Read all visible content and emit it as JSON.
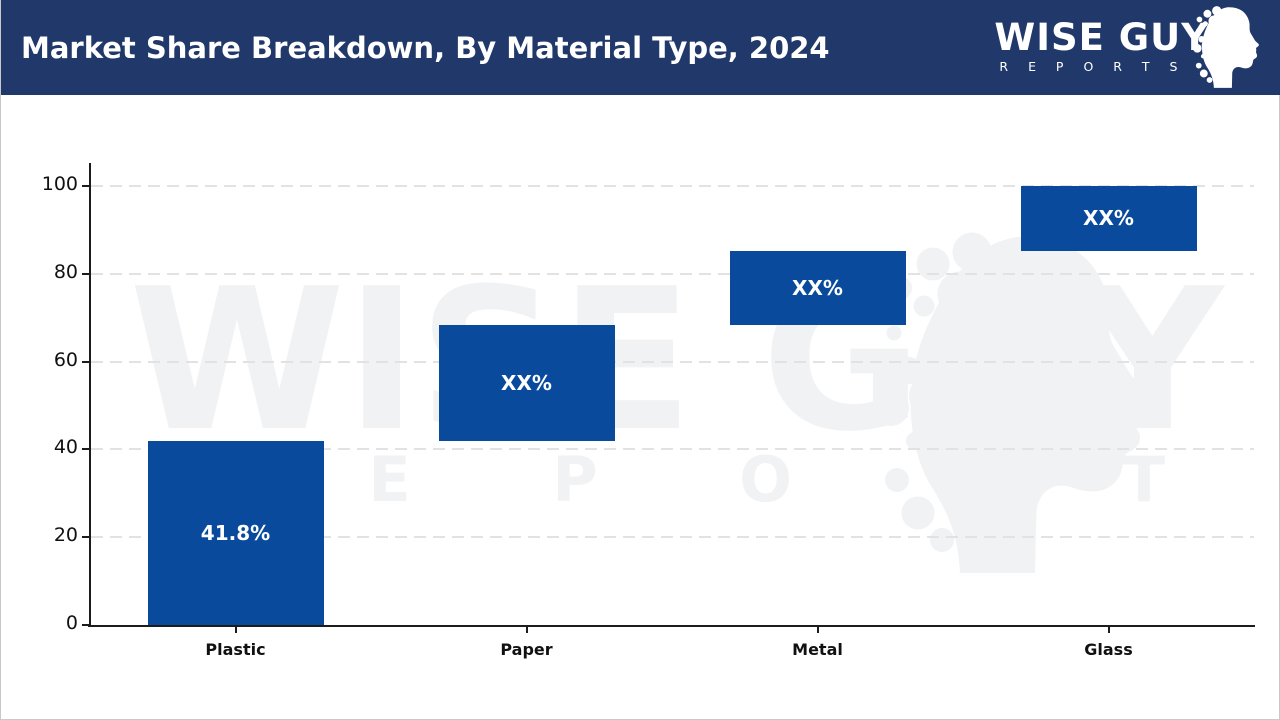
{
  "header": {
    "title": "Market Share Breakdown, By Material Type, 2024",
    "logo": {
      "line1": "WISE GUY",
      "line2": "R E P O R T S"
    }
  },
  "watermark": {
    "line1": "WISE GUY",
    "line2": "R E P O R T S"
  },
  "colors": {
    "header_bg": "#21386a",
    "bar": "#0a4a9d",
    "bar_label": "#ffffff",
    "grid": "#e2e2e2",
    "axis": "#1c1c1c",
    "watermark": "#f1f2f4"
  },
  "chart_data": {
    "type": "bar",
    "subtype": "waterfall",
    "title": "Market Share Breakdown, By Material Type, 2024",
    "categories": [
      "Plastic",
      "Paper",
      "Metal",
      "Glass"
    ],
    "series": [
      {
        "name": "Market Share (%)",
        "segments": [
          {
            "category": "Plastic",
            "start": 0,
            "end": 41.8,
            "label": "41.8%"
          },
          {
            "category": "Paper",
            "start": 41.8,
            "end": 68.3,
            "label": "XX%"
          },
          {
            "category": "Metal",
            "start": 68.3,
            "end": 85.3,
            "label": "XX%"
          },
          {
            "category": "Glass",
            "start": 85.3,
            "end": 100,
            "label": "XX%"
          }
        ]
      }
    ],
    "xlabel": "",
    "ylabel": "",
    "ylim": [
      0,
      100
    ],
    "yticks": [
      0,
      20,
      40,
      60,
      80,
      100
    ],
    "grid": true,
    "grid_style": "dashed",
    "legend": false
  }
}
